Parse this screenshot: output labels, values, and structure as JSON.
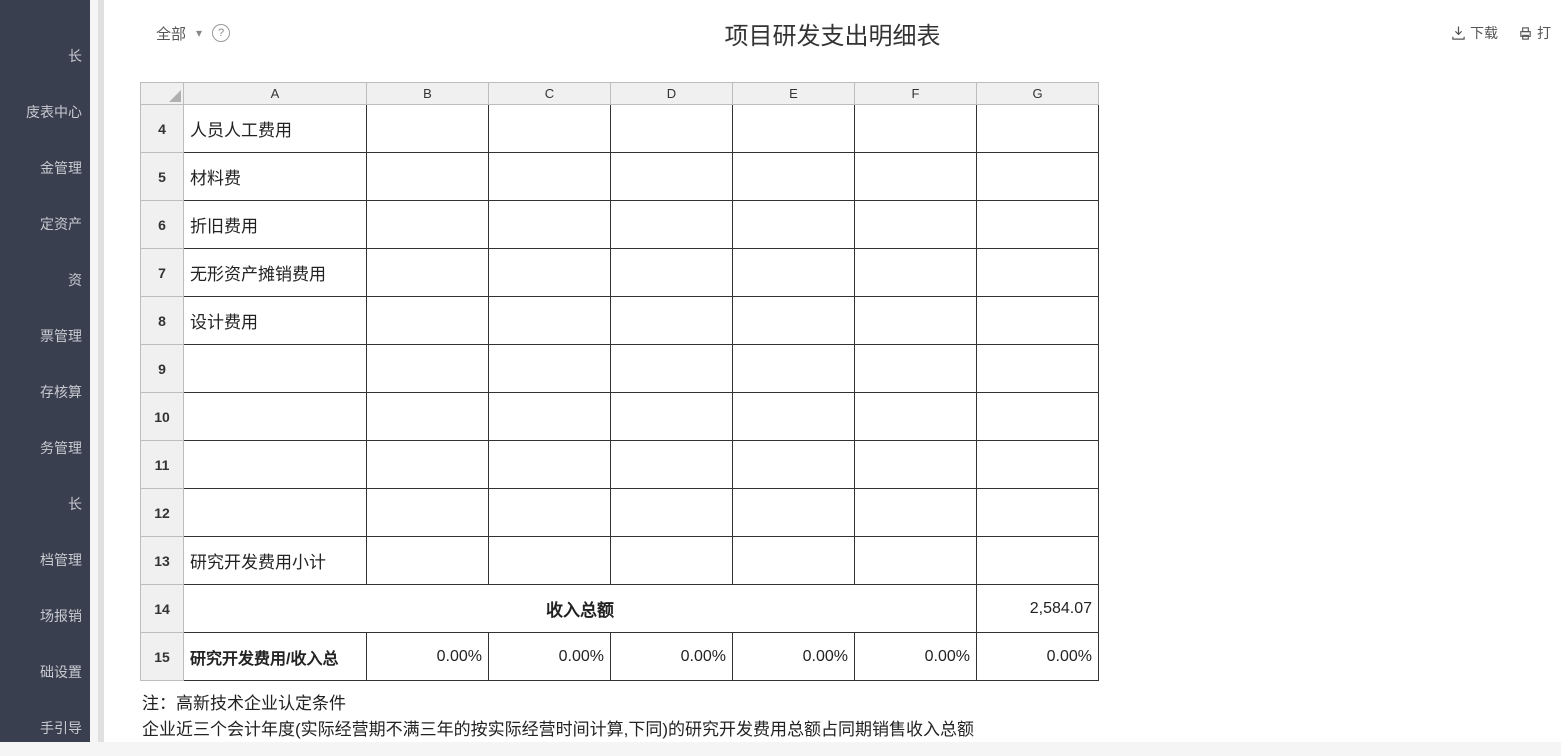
{
  "sidebar": {
    "items": [
      {
        "label": "长"
      },
      {
        "label": "庋表中心"
      },
      {
        "label": "金管理"
      },
      {
        "label": "定资产"
      },
      {
        "label": "资"
      },
      {
        "label": "票管理"
      },
      {
        "label": "存核算"
      },
      {
        "label": "务管理"
      },
      {
        "label": "长"
      },
      {
        "label": "档管理"
      },
      {
        "label": "场报销"
      },
      {
        "label": "础设置"
      },
      {
        "label": "手引导"
      }
    ]
  },
  "toolbar": {
    "filter_label": "全部",
    "download_label": "下载",
    "print_label": "打"
  },
  "title": "项目研发支出明细表",
  "sheet": {
    "columns": [
      "A",
      "B",
      "C",
      "D",
      "E",
      "F",
      "G"
    ],
    "colWidths": {
      "A": 183,
      "B": 122,
      "C": 122,
      "D": 122,
      "E": 122,
      "F": 122,
      "G": 122
    },
    "rows": [
      {
        "num": 4,
        "cells": [
          {
            "v": "人员人工费用"
          },
          {
            "v": ""
          },
          {
            "v": ""
          },
          {
            "v": ""
          },
          {
            "v": ""
          },
          {
            "v": ""
          },
          {
            "v": ""
          }
        ]
      },
      {
        "num": 5,
        "cells": [
          {
            "v": "材料费"
          },
          {
            "v": ""
          },
          {
            "v": ""
          },
          {
            "v": ""
          },
          {
            "v": ""
          },
          {
            "v": ""
          },
          {
            "v": ""
          }
        ]
      },
      {
        "num": 6,
        "cells": [
          {
            "v": "折旧费用"
          },
          {
            "v": ""
          },
          {
            "v": ""
          },
          {
            "v": ""
          },
          {
            "v": ""
          },
          {
            "v": ""
          },
          {
            "v": ""
          }
        ]
      },
      {
        "num": 7,
        "cells": [
          {
            "v": "无形资产摊销费用"
          },
          {
            "v": ""
          },
          {
            "v": ""
          },
          {
            "v": ""
          },
          {
            "v": ""
          },
          {
            "v": ""
          },
          {
            "v": ""
          }
        ]
      },
      {
        "num": 8,
        "cells": [
          {
            "v": "设计费用"
          },
          {
            "v": ""
          },
          {
            "v": ""
          },
          {
            "v": ""
          },
          {
            "v": ""
          },
          {
            "v": ""
          },
          {
            "v": ""
          }
        ]
      },
      {
        "num": 9,
        "cells": [
          {
            "v": ""
          },
          {
            "v": ""
          },
          {
            "v": ""
          },
          {
            "v": ""
          },
          {
            "v": ""
          },
          {
            "v": ""
          },
          {
            "v": ""
          }
        ]
      },
      {
        "num": 10,
        "cells": [
          {
            "v": ""
          },
          {
            "v": ""
          },
          {
            "v": ""
          },
          {
            "v": ""
          },
          {
            "v": ""
          },
          {
            "v": ""
          },
          {
            "v": ""
          }
        ]
      },
      {
        "num": 11,
        "cells": [
          {
            "v": ""
          },
          {
            "v": ""
          },
          {
            "v": ""
          },
          {
            "v": ""
          },
          {
            "v": ""
          },
          {
            "v": ""
          },
          {
            "v": ""
          }
        ]
      },
      {
        "num": 12,
        "cells": [
          {
            "v": ""
          },
          {
            "v": ""
          },
          {
            "v": ""
          },
          {
            "v": ""
          },
          {
            "v": ""
          },
          {
            "v": ""
          },
          {
            "v": ""
          }
        ]
      },
      {
        "num": 13,
        "cells": [
          {
            "v": "研究开发费用小计"
          },
          {
            "v": ""
          },
          {
            "v": ""
          },
          {
            "v": ""
          },
          {
            "v": ""
          },
          {
            "v": ""
          },
          {
            "v": ""
          }
        ]
      },
      {
        "num": 14,
        "type": "income",
        "mergedLabel": "收入总额",
        "total": "2,584.07"
      },
      {
        "num": 15,
        "type": "ratio",
        "label": "研究开发费用/收入总",
        "values": [
          "0.00%",
          "0.00%",
          "0.00%",
          "0.00%",
          "0.00%",
          "0.00%"
        ]
      }
    ],
    "footnote": {
      "line1": "注：高新技术企业认定条件",
      "line2": "企业近三个会计年度(实际经营期不满三年的按实际经营时间计算,下同)的研究开发费用总额占同期销售收入总额"
    }
  },
  "style": {
    "sidebar_bg": "#3a3f4f",
    "sidebar_text": "#c8cad0",
    "teal": "#2fb9c9",
    "border": "#333333",
    "header_bg": "#f0f0f0"
  }
}
